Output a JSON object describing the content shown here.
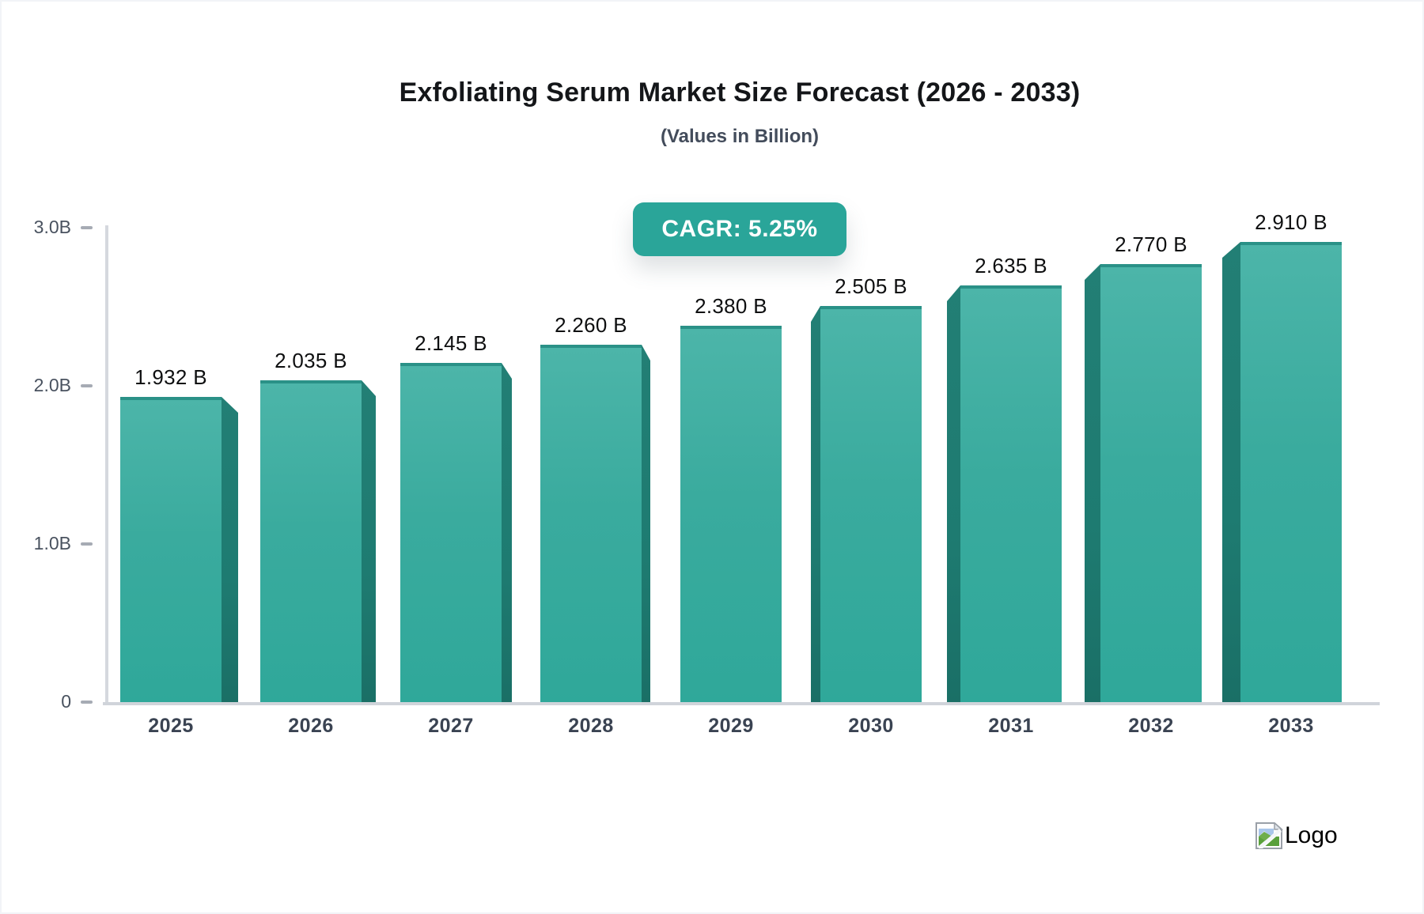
{
  "chart": {
    "title": "Exfoliating Serum Market Size Forecast (2026 - 2033)",
    "subtitle": "(Values in Billion)",
    "cagr_badge": "CAGR: 5.25%"
  },
  "chart_data": {
    "type": "bar",
    "title": "Exfoliating Serum Market Size Forecast (2026 - 2033)",
    "subtitle": "(Values in Billion)",
    "annotation": "CAGR: 5.25%",
    "categories": [
      "2025",
      "2026",
      "2027",
      "2028",
      "2029",
      "2030",
      "2031",
      "2032",
      "2033"
    ],
    "values": [
      1.932,
      2.035,
      2.145,
      2.26,
      2.38,
      2.505,
      2.635,
      2.77,
      2.91
    ],
    "value_labels": [
      "1.932 B",
      "2.035 B",
      "2.145 B",
      "2.260 B",
      "2.380 B",
      "2.505 B",
      "2.635 B",
      "2.770 B",
      "2.910 B"
    ],
    "xlabel": "",
    "ylabel": "",
    "ylim": [
      0,
      3.0
    ],
    "y_ticks": [
      {
        "label": "3.0B",
        "value": 3.0
      },
      {
        "label": "2.0B",
        "value": 2.0
      },
      {
        "label": "1.0B",
        "value": 1.0
      },
      {
        "label": "0",
        "value": 0.0
      }
    ],
    "grid": false,
    "legend": "none",
    "style": "3d-perspective-bars",
    "theme": {
      "bar_color_top": "#4CB5A9",
      "bar_color_bottom": "#2FA89A",
      "bar_side_color": "#1E7B71",
      "badge_color": "#2AA599",
      "axis_color": "#D5D8DE",
      "label_color": "#3A4352"
    }
  },
  "logo": {
    "alt_text": "Logo",
    "icon": "broken-image-icon"
  }
}
